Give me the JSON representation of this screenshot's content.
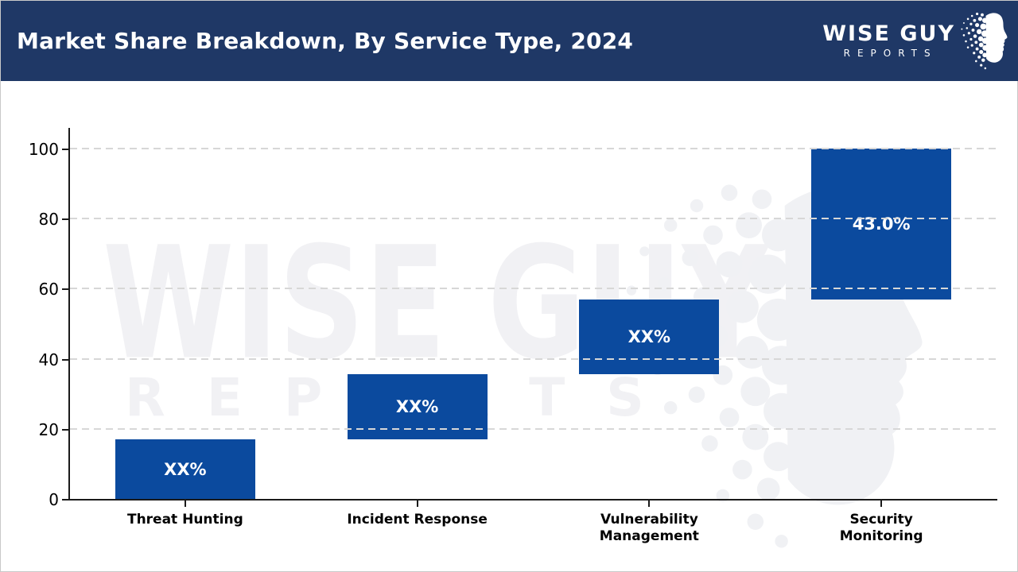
{
  "header": {
    "title": "Market Share Breakdown, By Service Type, 2024",
    "logo": {
      "line1": "WISE GUY",
      "line2": "REPORTS"
    }
  },
  "watermark": {
    "line1": "WISE GUY",
    "line2": "REPORTS"
  },
  "chart_data": {
    "type": "bar",
    "variant": "floating-waterfall",
    "title": "Market Share Breakdown, By Service Type, 2024",
    "categories": [
      "Threat Hunting",
      "Incident Response",
      "Vulnerability Management",
      "Security Monitoring"
    ],
    "category_label_lines": [
      [
        "Threat Hunting"
      ],
      [
        "Incident Response"
      ],
      [
        "Vulnerability",
        "Management"
      ],
      [
        "Security",
        "Monitoring"
      ]
    ],
    "segments": [
      {
        "category": "Threat Hunting",
        "start": 0,
        "end": 17,
        "label": "XX%"
      },
      {
        "category": "Incident Response",
        "start": 17,
        "end": 35.5,
        "label": "XX%"
      },
      {
        "category": "Vulnerability Management",
        "start": 35.5,
        "end": 57,
        "label": "XX%"
      },
      {
        "category": "Security Monitoring",
        "start": 57,
        "end": 100,
        "label": "43.0%"
      }
    ],
    "yticks": [
      0,
      20,
      40,
      60,
      80,
      100
    ],
    "ylim": [
      0,
      106
    ],
    "grid": {
      "horizontal": true,
      "style": "dashed",
      "color": "#d7d7d7",
      "above_bars": true
    },
    "legend": null,
    "colors": {
      "bar": "#0b4a9e",
      "bar_label": "#ffffff",
      "axis": "#1a1a1a",
      "tick_text": "#000000",
      "header_bg": "#1f3866",
      "watermark": "#f1f1f4"
    }
  }
}
